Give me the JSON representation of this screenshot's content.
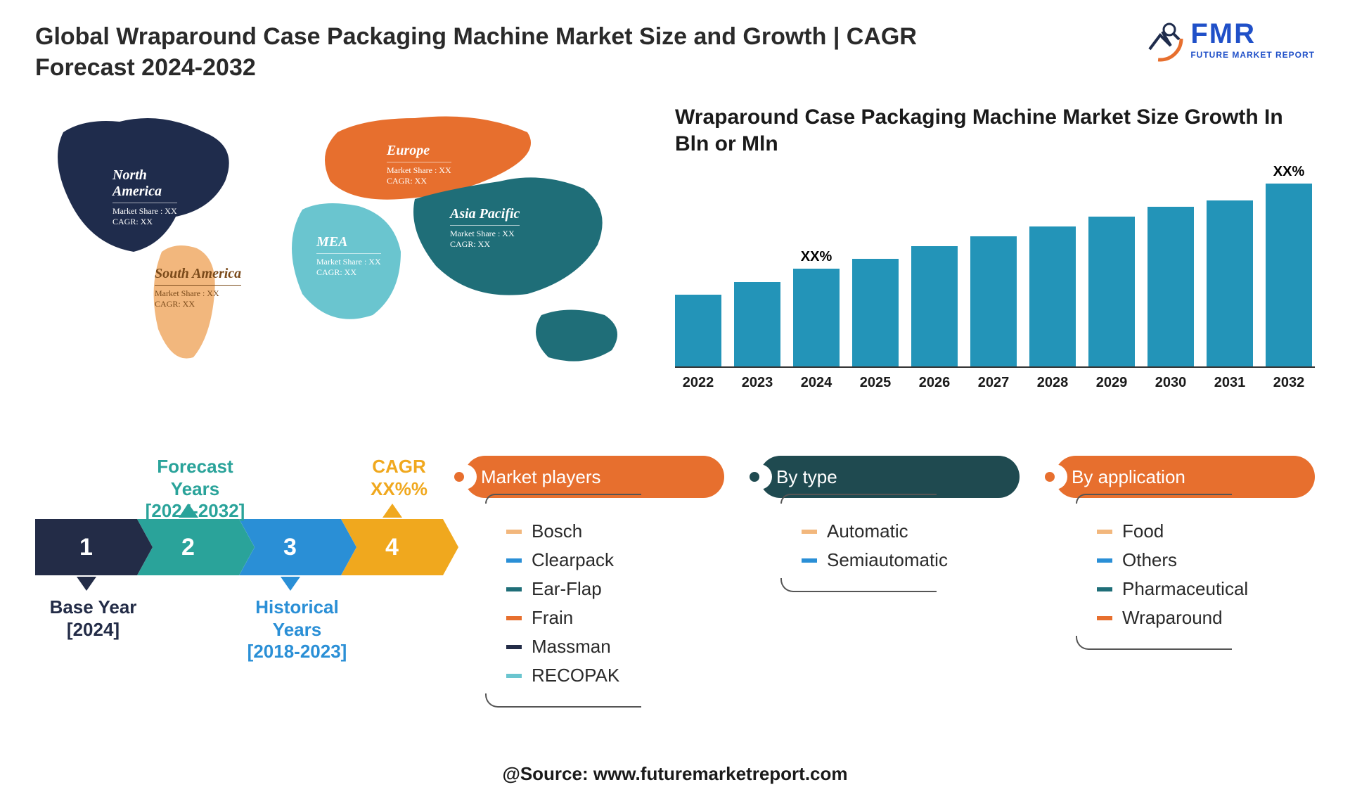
{
  "title": "Global Wraparound Case Packaging Machine Market Size and Growth | CAGR Forecast 2024-2032",
  "logo": {
    "main": "FMR",
    "sub": "FUTURE MARKET REPORT"
  },
  "map": {
    "regions": [
      {
        "key": "na",
        "name": "North\nAmerica",
        "share": "Market Share : XX",
        "cagr": "CAGR: XX",
        "color": "#1f2c4c"
      },
      {
        "key": "sa",
        "name": "South America",
        "share": "Market Share : XX",
        "cagr": "CAGR: XX",
        "color": "#f2b77d"
      },
      {
        "key": "eu",
        "name": "Europe",
        "share": "Market Share : XX",
        "cagr": "CAGR: XX",
        "color": "#e76f2e"
      },
      {
        "key": "mea",
        "name": "MEA",
        "share": "Market Share : XX",
        "cagr": "CAGR: XX",
        "color": "#6ac5cf"
      },
      {
        "key": "ap",
        "name": "Asia Pacific",
        "share": "Market Share : XX",
        "cagr": "CAGR: XX",
        "color": "#1f6e78"
      }
    ]
  },
  "bar_chart": {
    "title": "Wraparound Case Packaging Machine Market Size Growth In\nBln or Mln",
    "type": "bar",
    "categories": [
      "2022",
      "2023",
      "2024",
      "2025",
      "2026",
      "2027",
      "2028",
      "2029",
      "2030",
      "2031",
      "2032"
    ],
    "values": [
      110,
      130,
      150,
      165,
      185,
      200,
      215,
      230,
      245,
      255,
      280
    ],
    "bar_color": "#2394b8",
    "label_color": "#1a1a1a",
    "label_fontsize": 20,
    "annotations": [
      {
        "index": 2,
        "text": "XX%"
      },
      {
        "index": 10,
        "text": "XX%"
      }
    ],
    "ylim_max": 280
  },
  "timeline": {
    "items": [
      {
        "num": "1",
        "color": "#232c47",
        "label": "Base Year\n[2024]",
        "pos": "bottom"
      },
      {
        "num": "2",
        "color": "#2aa39a",
        "label": "Forecast Years\n[2024-2032]",
        "pos": "top"
      },
      {
        "num": "3",
        "color": "#2a8fd6",
        "label": "Historical Years\n[2018-2023]",
        "pos": "bottom"
      },
      {
        "num": "4",
        "color": "#f0a81e",
        "label": "CAGR\nXX%%",
        "pos": "top"
      }
    ]
  },
  "categories": [
    {
      "header": "Market players",
      "header_color": "#e76f2e",
      "dot_inner": "#e76f2e",
      "items": [
        {
          "label": "Bosch",
          "color": "#f2b77d"
        },
        {
          "label": "Clearpack",
          "color": "#2a8fd6"
        },
        {
          "label": "Ear-Flap",
          "color": "#1f6e78"
        },
        {
          "label": "Frain",
          "color": "#e76f2e"
        },
        {
          "label": "Massman",
          "color": "#232c47"
        },
        {
          "label": "RECOPAK",
          "color": "#6ac5cf"
        }
      ]
    },
    {
      "header": "By type",
      "header_color": "#1f4a50",
      "dot_inner": "#1f4a50",
      "items": [
        {
          "label": "Automatic",
          "color": "#f2b77d"
        },
        {
          "label": "Semiautomatic",
          "color": "#2a8fd6"
        }
      ]
    },
    {
      "header": "By application",
      "header_color": "#e76f2e",
      "dot_inner": "#e76f2e",
      "items": [
        {
          "label": "Food",
          "color": "#f2b77d"
        },
        {
          "label": "Others",
          "color": "#2a8fd6"
        },
        {
          "label": "Pharmaceutical",
          "color": "#1f6e78"
        },
        {
          "label": "Wraparound",
          "color": "#e76f2e"
        }
      ]
    }
  ],
  "source": "@Source: www.futuremarketreport.com"
}
